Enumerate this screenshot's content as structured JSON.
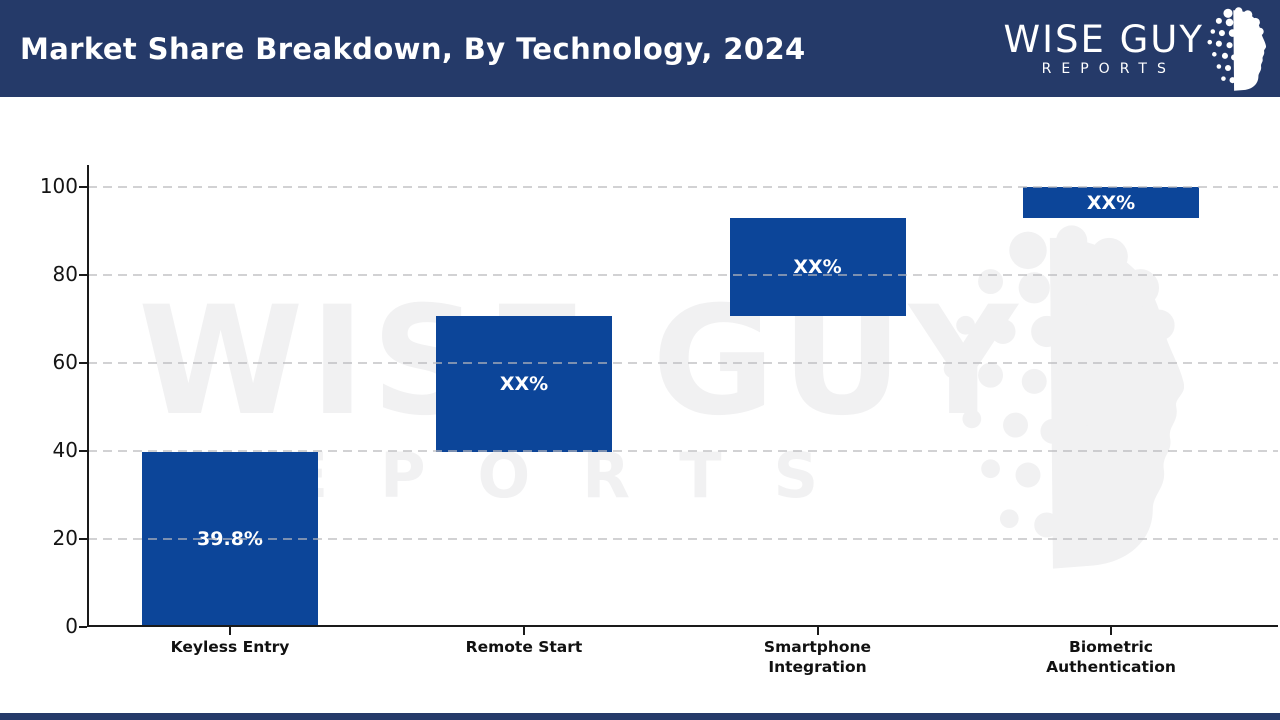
{
  "header": {
    "title": "Market Share Breakdown, By Technology, 2024",
    "bg_color": "#253a69",
    "logo": {
      "line1": "WISE GUY",
      "line2": "REPORTS"
    }
  },
  "watermark": {
    "line1": "WISE GUY",
    "line2": "REPORTS"
  },
  "chart_data": {
    "type": "bar",
    "subtype": "waterfall",
    "title": "Market Share Breakdown, By Technology, 2024",
    "categories": [
      "Keyless Entry",
      "Remote Start",
      "Smartphone Integration",
      "Biometric Authentication"
    ],
    "series": [
      {
        "name": "Market share (%)",
        "segments": [
          {
            "category": "Keyless Entry",
            "start": 0,
            "end": 39.8,
            "label": "39.8%"
          },
          {
            "category": "Remote Start",
            "start": 39.8,
            "end": 70.6,
            "label": "XX%"
          },
          {
            "category": "Smartphone Integration",
            "start": 70.6,
            "end": 92.9,
            "label": "XX%"
          },
          {
            "category": "Biometric Authentication",
            "start": 92.9,
            "end": 100,
            "label": "XX%"
          }
        ]
      }
    ],
    "xlabel": "",
    "ylabel": "",
    "ylim": [
      0,
      100
    ],
    "yticks": [
      0,
      20,
      40,
      60,
      80,
      100
    ],
    "grid": "horizontal-dashed",
    "legend": "none",
    "bar_color": "#0c4599",
    "bar_label_color": "#ffffff",
    "grid_color": "#dcdcdc",
    "axis_color": "#1a1a1a"
  }
}
